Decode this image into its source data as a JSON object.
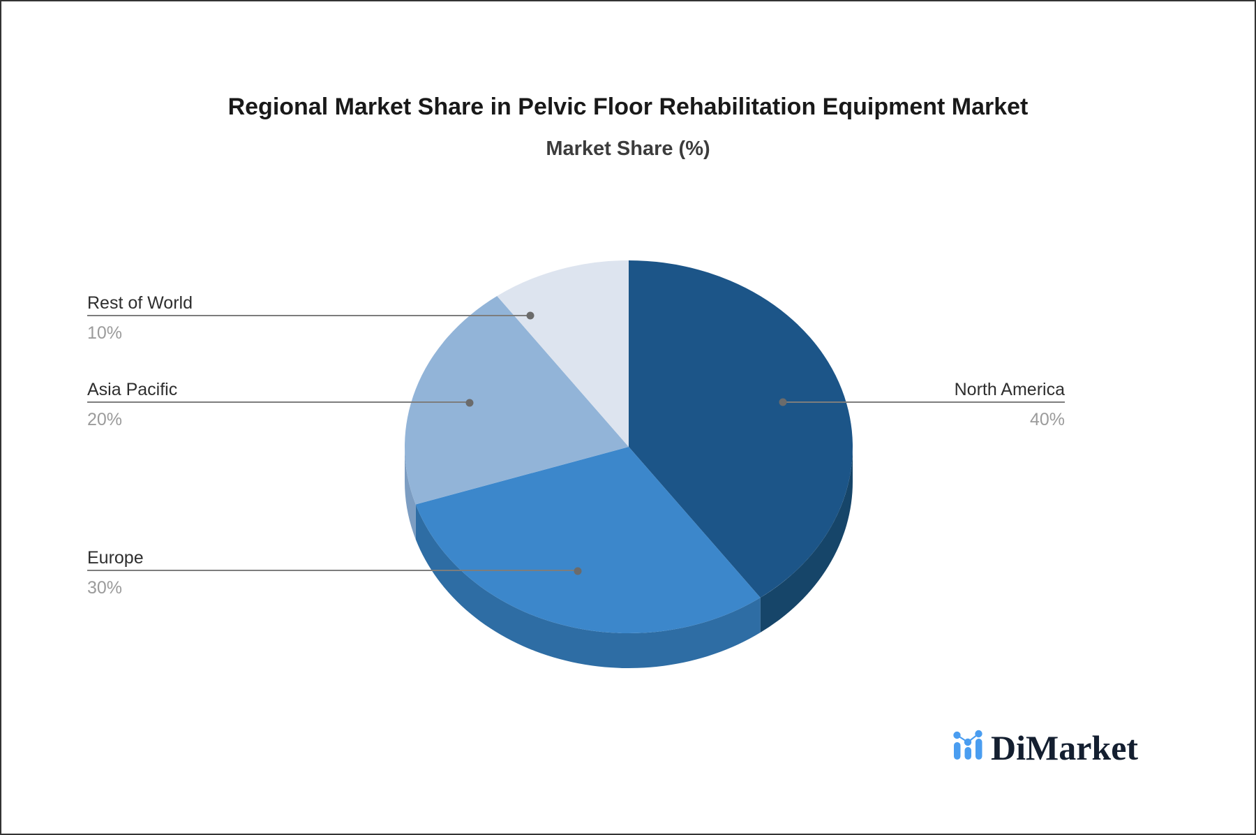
{
  "frame": {
    "border_color": "#343434",
    "background": "#ffffff"
  },
  "chart_data": {
    "type": "pie",
    "title": "Regional Market Share in Pelvic Floor Rehabilitation Equipment Market",
    "subtitle": "Market Share (%)",
    "unit": "%",
    "effect": "3d",
    "direction": "clockwise",
    "start_angle_deg": 0,
    "legend": "none",
    "slices": [
      {
        "label": "North America",
        "value": 40,
        "percent_label": "40%",
        "color": "#1c5588",
        "side_color": "#164569"
      },
      {
        "label": "Europe",
        "value": 30,
        "percent_label": "30%",
        "color": "#3c87cb",
        "side_color": "#2e6da4"
      },
      {
        "label": "Asia Pacific",
        "value": 20,
        "percent_label": "20%",
        "color": "#92b4d8",
        "side_color": "#7c9dc2"
      },
      {
        "label": "Rest of World",
        "value": 10,
        "percent_label": "10%",
        "color": "#dde4ef",
        "side_color": "#bcc7d6"
      }
    ],
    "label_style": {
      "name_color": "#2e2e2e",
      "percent_color": "#9b9b9b",
      "line_color": "#7d7d7d",
      "dot_color": "#6b6b6b"
    }
  },
  "logo": {
    "text": "DiMarket",
    "icon": "bar-chart-trend-icon",
    "icon_color": "#4a9df0",
    "text_color": "#141f30"
  }
}
